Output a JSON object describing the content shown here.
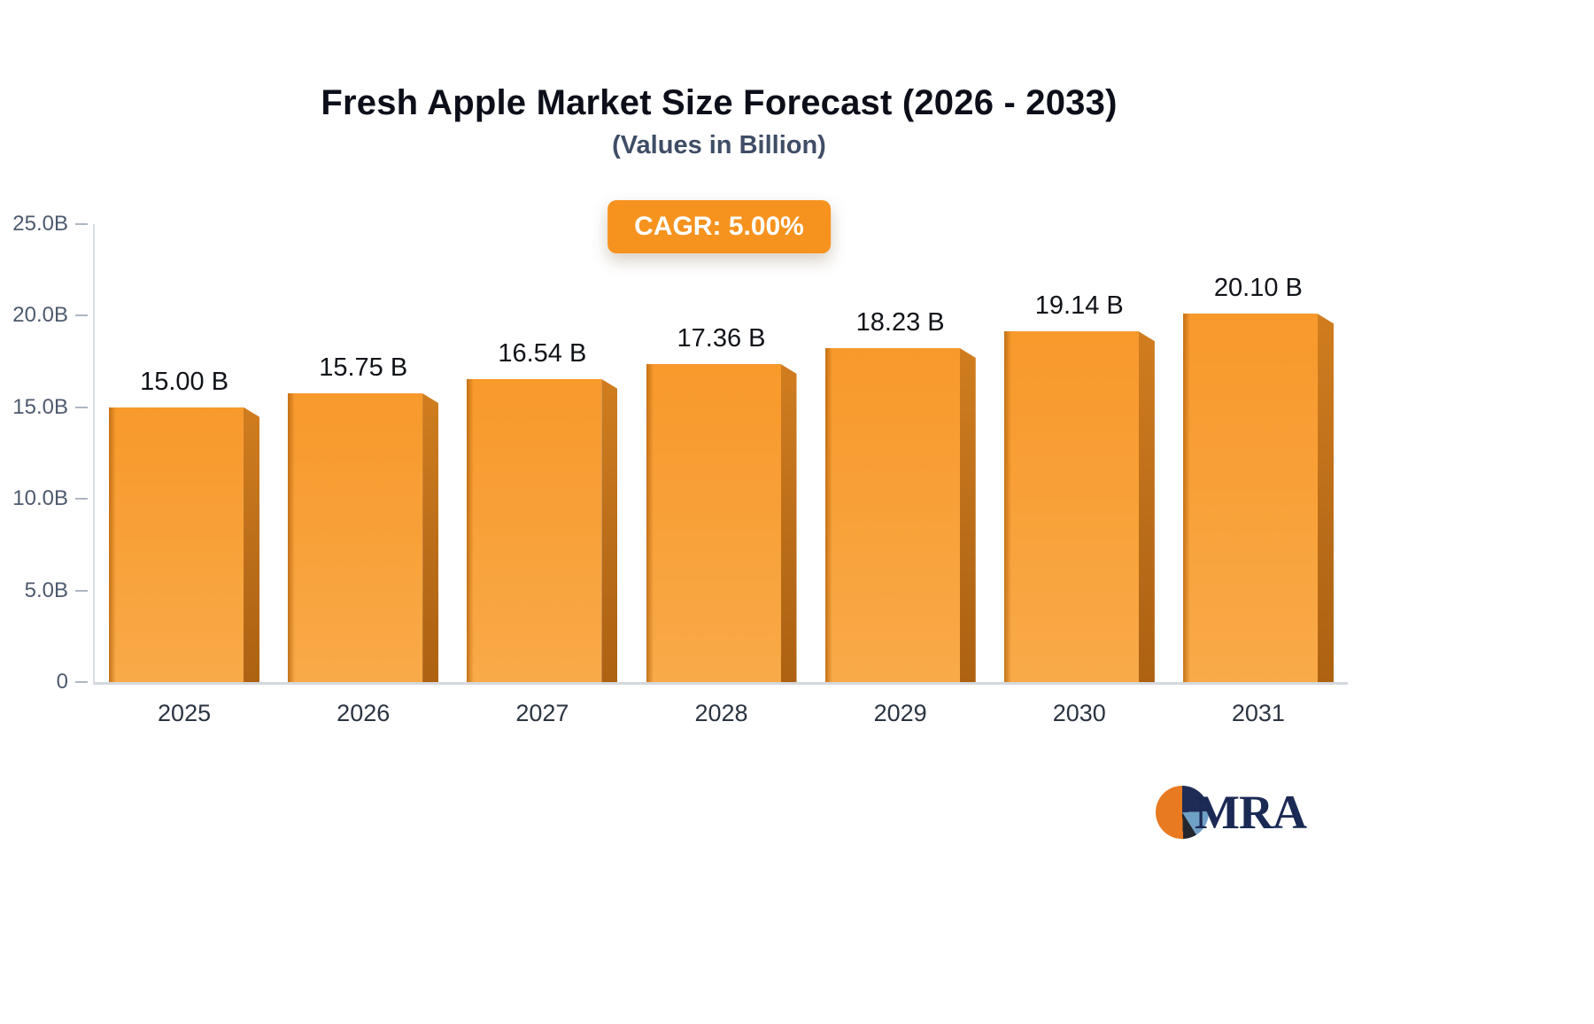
{
  "header": {
    "title": "Fresh Apple Market Size Forecast (2026 - 2033)",
    "subtitle": "(Values in Billion)"
  },
  "badge": {
    "label": "CAGR: 5.00%",
    "bg_color": "#f6921e"
  },
  "logo": {
    "text": "MRA"
  },
  "colors": {
    "bar_front": "#f8a037",
    "bar_side": "#c1731d",
    "axis": "#d9dde3",
    "value_label": "#101318",
    "tick_label": "#4e5a6e"
  },
  "chart_data": {
    "type": "bar",
    "title": "Fresh Apple Market Size Forecast (2026 - 2033)",
    "subtitle": "(Values in Billion)",
    "xlabel": "",
    "ylabel": "",
    "ylim": [
      0,
      25
    ],
    "grid": false,
    "legend": "none",
    "categories": [
      "2025",
      "2026",
      "2027",
      "2028",
      "2029",
      "2030",
      "2031"
    ],
    "values": [
      15.0,
      15.75,
      16.54,
      17.36,
      18.23,
      19.14,
      20.1
    ],
    "data_labels": [
      "15.00 B",
      "15.75 B",
      "16.54 B",
      "17.36 B",
      "18.23 B",
      "19.14 B",
      "20.10 B"
    ],
    "y_ticks": [
      {
        "label": "25.0B",
        "value": 25
      },
      {
        "label": "20.0B",
        "value": 20
      },
      {
        "label": "15.0B",
        "value": 15
      },
      {
        "label": "10.0B",
        "value": 10
      },
      {
        "label": "5.0B",
        "value": 5
      },
      {
        "label": "0",
        "value": 0
      }
    ],
    "annotation": "CAGR: 5.00%"
  }
}
